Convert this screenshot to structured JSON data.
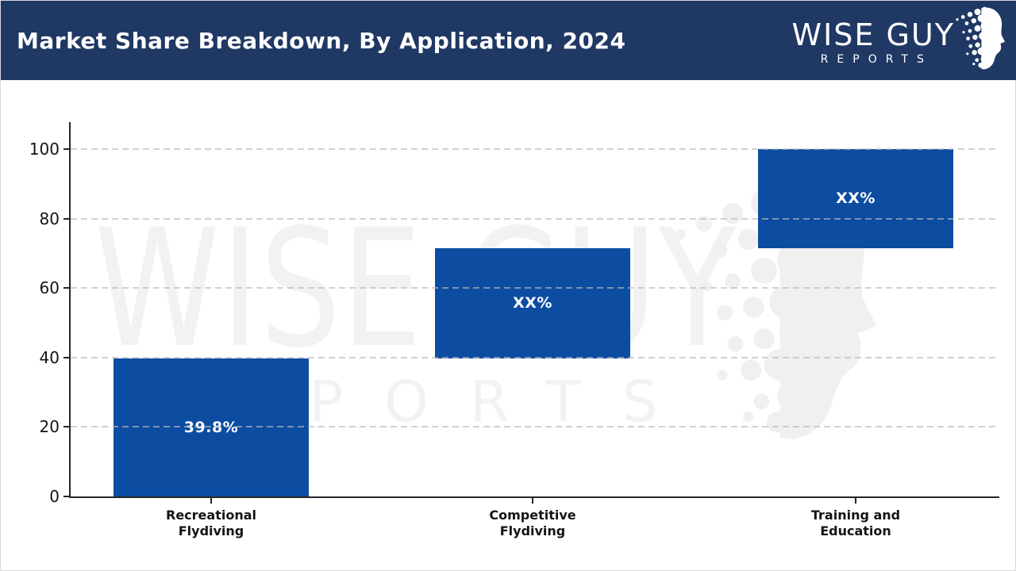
{
  "header": {
    "title": "Market Share Breakdown, By Application, 2024",
    "logo": {
      "line1": "WISE GUY",
      "line2": "REPORTS"
    }
  },
  "watermark": {
    "line1": "WISE GUY",
    "line2": "REPORTS"
  },
  "chart_data": {
    "type": "bar",
    "subtype": "waterfall",
    "title": "Market Share Breakdown, By Application, 2024",
    "categories": [
      "Recreational\nFlydiving",
      "Competitive\nFlydiving",
      "Training and\nEducation"
    ],
    "bars": [
      {
        "category": "Recreational Flydiving",
        "start": 0,
        "end": 39.8,
        "label": "39.8%"
      },
      {
        "category": "Competitive Flydiving",
        "start": 39.8,
        "end": 71.5,
        "label": "XX%"
      },
      {
        "category": "Training and Education",
        "start": 71.5,
        "end": 100,
        "label": "XX%"
      }
    ],
    "yticks": [
      0,
      20,
      40,
      60,
      80,
      100
    ],
    "ylim": [
      0,
      107
    ],
    "xlabel": "",
    "ylabel": "",
    "grid": "horizontal-dashed",
    "legend": "none",
    "bar_color": "#0c4da2",
    "bar_label_color": "#ffffff",
    "axis_color": "#262626",
    "header_color": "#1f3864",
    "watermark_color": "#f2f2f2"
  }
}
